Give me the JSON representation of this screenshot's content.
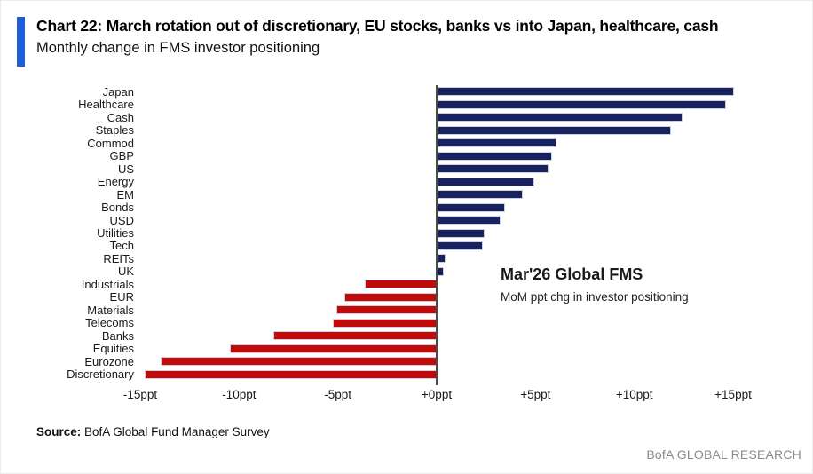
{
  "header": {
    "title": "Chart 22: March rotation out of discretionary, EU stocks, banks vs into Japan, healthcare, cash",
    "subtitle": "Monthly change in FMS investor positioning",
    "accent_color": "#1c5fd6"
  },
  "chart_data": {
    "type": "bar",
    "orientation": "horizontal",
    "title": "Monthly change in FMS investor positioning",
    "annotation_title": "Mar'26 Global FMS",
    "annotation_subtitle": "MoM ppt chg in investor positioning",
    "categories": [
      "Japan",
      "Healthcare",
      "Cash",
      "Staples",
      "Commod",
      "GBP",
      "US",
      "Energy",
      "EM",
      "Bonds",
      "USD",
      "Utilities",
      "Tech",
      "REITs",
      "UK",
      "Industrials",
      "EUR",
      "Materials",
      "Telecoms",
      "Banks",
      "Equities",
      "Eurozone",
      "Discretionary"
    ],
    "values": [
      15.0,
      14.6,
      12.4,
      11.8,
      6.0,
      5.8,
      5.6,
      4.9,
      4.3,
      3.4,
      3.2,
      2.4,
      2.3,
      0.4,
      0.3,
      -3.7,
      -4.7,
      -5.1,
      -5.3,
      -8.3,
      -10.5,
      -14.0,
      -14.8
    ],
    "unit": "ppt",
    "xlabel": "",
    "ylabel": "",
    "xlim": [
      -15,
      15
    ],
    "x_ticks": [
      -15,
      -10,
      -5,
      0,
      5,
      10,
      15
    ],
    "x_tick_labels": [
      "-15ppt",
      "-10ppt",
      "-5ppt",
      "+0ppt",
      "+5ppt",
      "+10ppt",
      "+15ppt"
    ],
    "positive_color": "#18225f",
    "negative_color": "#c00b0b",
    "axis_color": "#4a4a4a",
    "grid": false,
    "legend": false
  },
  "footer": {
    "source_label": "Source:",
    "source_text": " BofA Global Fund Manager Survey",
    "brand": "BofA GLOBAL RESEARCH"
  }
}
